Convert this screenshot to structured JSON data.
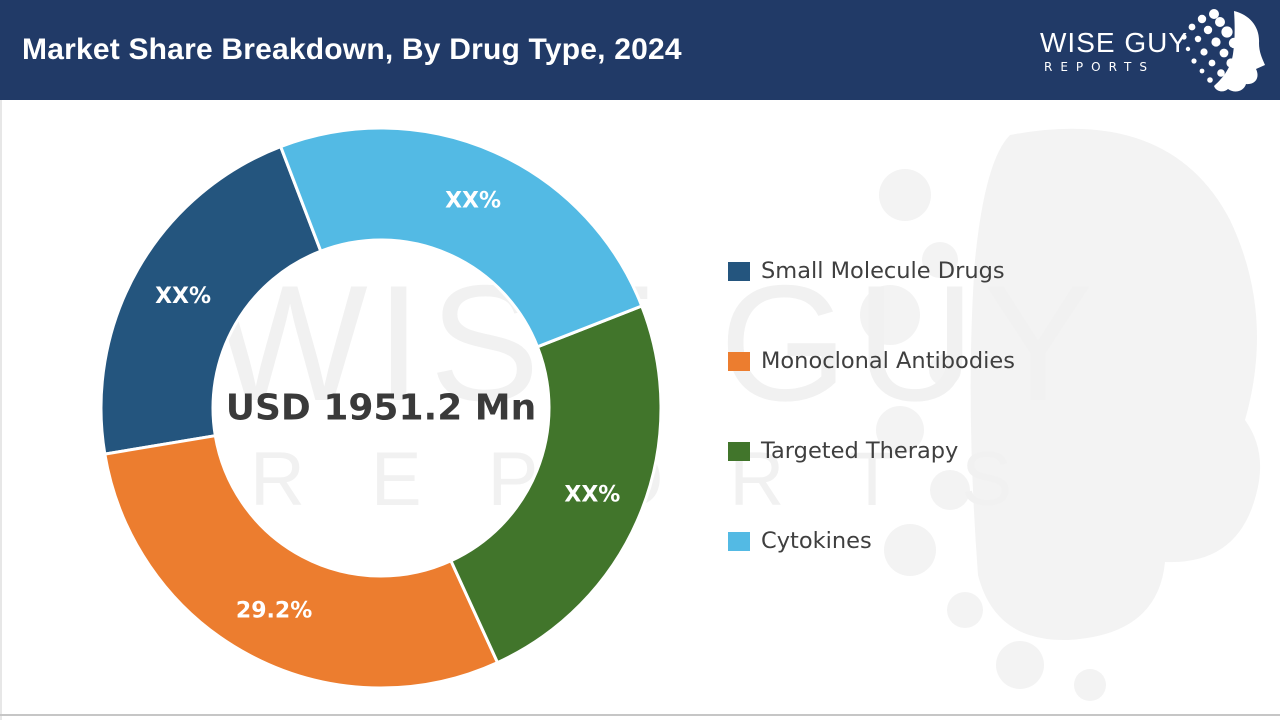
{
  "header": {
    "title": "Market Share Breakdown, By Drug Type, 2024",
    "bg_color": "#213A67",
    "brand": {
      "name": "WISE GUY",
      "sub": "REPORTS"
    }
  },
  "watermark": {
    "line1": "WISE GUY",
    "line2": "REPORTS"
  },
  "chart_data": {
    "type": "pie",
    "subtype": "donut",
    "title": "Market Share Breakdown, By Drug Type, 2024",
    "center_label": "USD 1951.2 Mn",
    "units": "percent of market share",
    "start_angle_deg": 111,
    "direction": "counterclockwise",
    "inner_radius_ratio": 0.6,
    "legend_position": "right",
    "slices": [
      {
        "label": "Small Molecule Drugs",
        "value": 21.8,
        "display": "XX%",
        "color": "#24557E"
      },
      {
        "label": "Monoclonal Antibodies",
        "value": 29.2,
        "display": "29.2%",
        "color": "#EC7D2F"
      },
      {
        "label": "Targeted Therapy",
        "value": 24.1,
        "display": "XX%",
        "color": "#41752B"
      },
      {
        "label": "Cytokines",
        "value": 24.9,
        "display": "XX%",
        "color": "#53BAE4"
      }
    ]
  }
}
